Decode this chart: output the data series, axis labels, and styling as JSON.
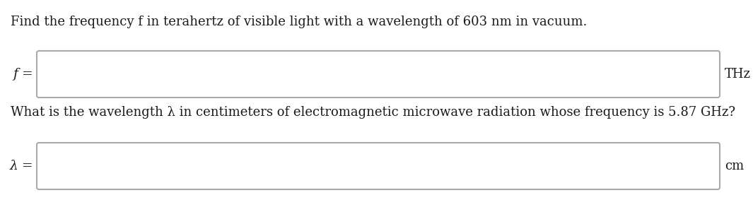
{
  "title1": "Find the frequency f in terahertz of visible light with a wavelength of 603 nm in vacuum.",
  "label1": "f =",
  "unit1": "THz",
  "title2": "What is the wavelength λ in centimeters of electromagnetic microwave radiation whose frequency is 5.87 GHz?",
  "label2": "λ =",
  "unit2": "cm",
  "bg_color": "#ffffff",
  "box_face_color": "#ffffff",
  "box_edge_color": "#aaaaaa",
  "text_color": "#1a1a1a",
  "font_size_title": 13.0,
  "font_size_label": 13.5,
  "font_size_unit": 13.0
}
